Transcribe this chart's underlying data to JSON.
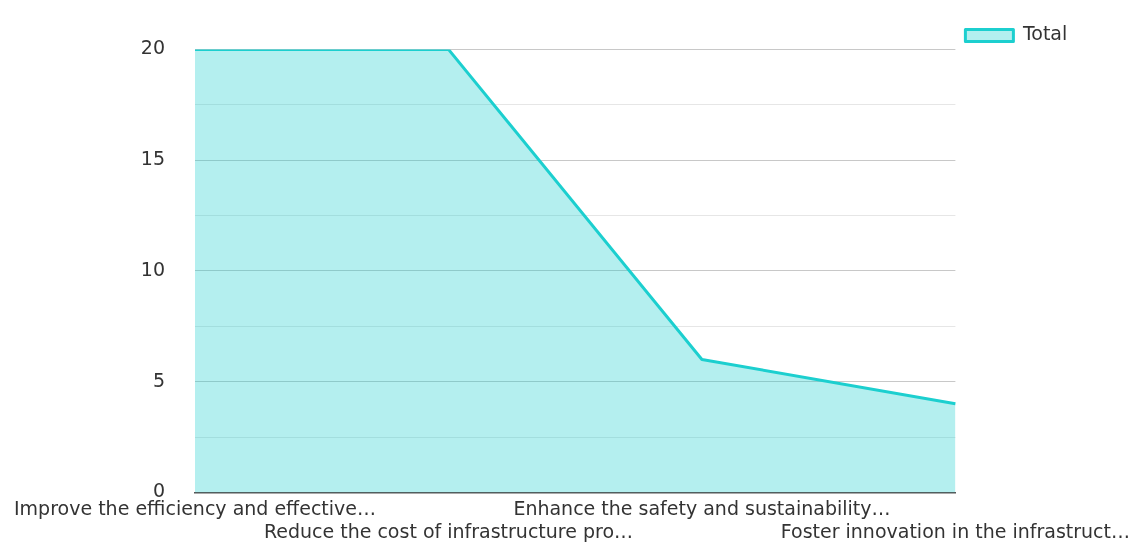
{
  "chart_data": {
    "type": "area",
    "categories": [
      "Improve the efficiency and effective…",
      "Reduce the cost of infrastructure pro…",
      "Enhance the safety and sustainability…",
      "Foster innovation in the infrastruct…"
    ],
    "series": [
      {
        "name": "Total",
        "color": "#1ccfcf",
        "values": [
          20,
          20,
          6,
          4
        ]
      }
    ],
    "ylim": [
      0,
      20
    ],
    "yticks": [
      0,
      {
        "value": 2.5,
        "label": null
      },
      5,
      {
        "value": 7.5,
        "label": null
      },
      10,
      {
        "value": 12.5,
        "label": null
      },
      15,
      {
        "value": 17.5,
        "label": null
      },
      20
    ],
    "grid": "y",
    "legend": "top right"
  }
}
